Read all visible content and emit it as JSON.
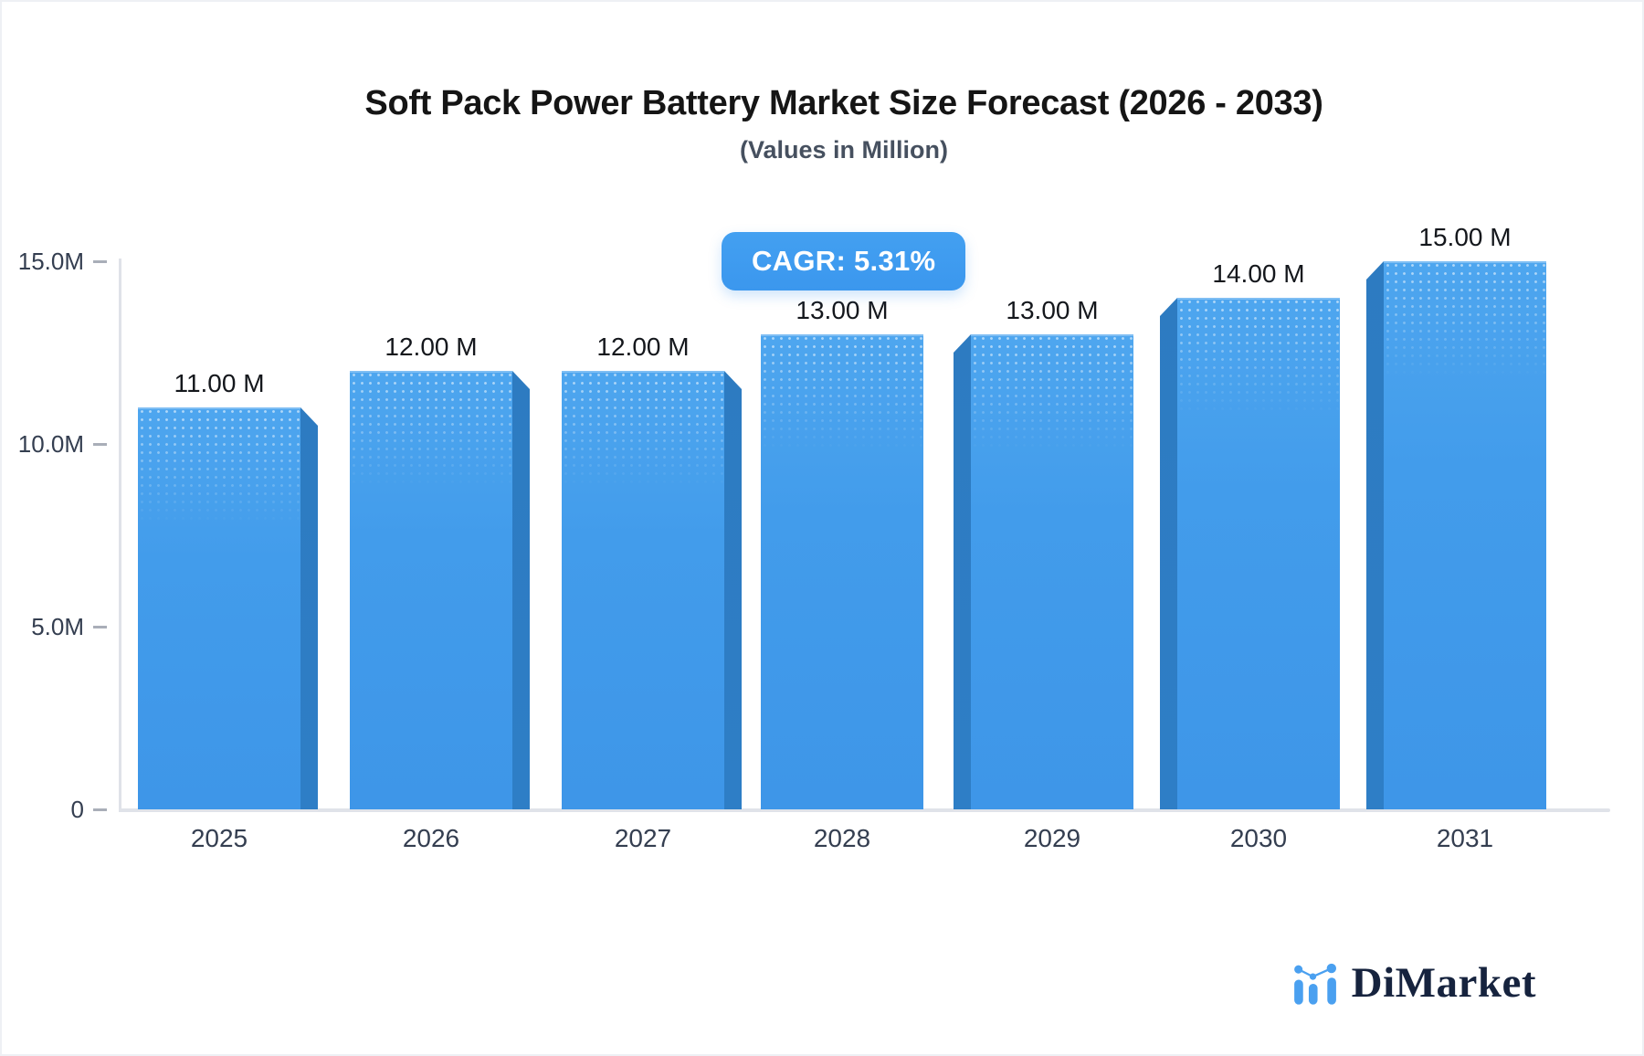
{
  "header": {
    "title": "Soft Pack Power Battery Market Size Forecast (2026 - 2033)",
    "subtitle": "(Values in Million)",
    "cagr_badge": "CAGR: 5.31%"
  },
  "footer": {
    "brand": "DiMarket"
  },
  "chart_data": {
    "type": "bar",
    "title": "Soft Pack Power Battery Market Size Forecast (2026 - 2033)",
    "subtitle": "(Values in Million)",
    "unit": "Million",
    "categories": [
      "2025",
      "2026",
      "2027",
      "2028",
      "2029",
      "2030",
      "2031"
    ],
    "values": [
      11,
      12,
      12,
      13,
      13,
      14,
      15
    ],
    "value_labels": [
      "11.00 M",
      "12.00 M",
      "12.00 M",
      "13.00 M",
      "13.00 M",
      "14.00 M",
      "15.00 M"
    ],
    "ylim": [
      0,
      15
    ],
    "y_ticks": [
      {
        "label": "0",
        "value": 0
      },
      {
        "label": "5.0M",
        "value": 5
      },
      {
        "label": "10.0M",
        "value": 10
      },
      {
        "label": "15.0M",
        "value": 15
      }
    ],
    "grid": false,
    "legend": "none",
    "annotations": [
      {
        "text": "CAGR: 5.31%",
        "position": "top-center"
      }
    ],
    "colors": {
      "bar_front": "#3F9AEA",
      "bar_side": "#2D7BC1",
      "badge": "#3E9BF0",
      "axis_line": "#DFE2E8",
      "tick_text": "#343E50",
      "value_text": "#14171C",
      "title_text": "#151515",
      "logo_navy": "#16233E",
      "logo_blue": "#4AA0F0"
    }
  }
}
